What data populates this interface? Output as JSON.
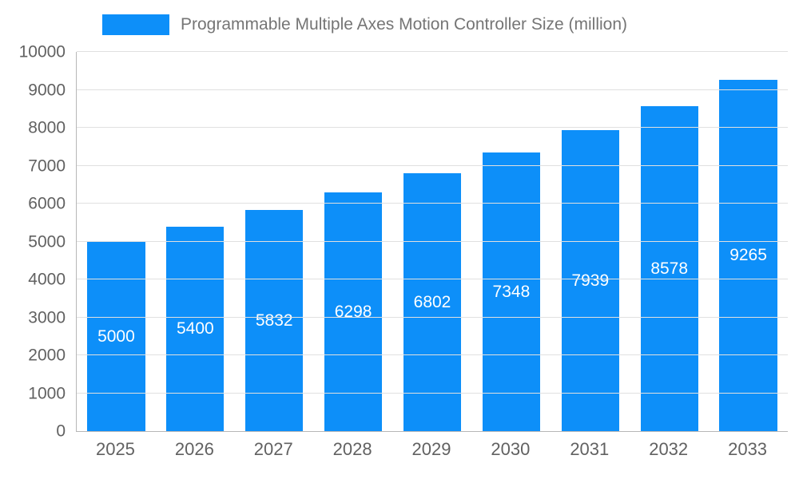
{
  "legend": {
    "label": "Programmable Multiple Axes Motion Controller Size (million)",
    "swatch_color": "#0d8ff9"
  },
  "chart_data": {
    "type": "bar",
    "title": "Programmable Multiple Axes Motion Controller Size (million)",
    "categories": [
      "2025",
      "2026",
      "2027",
      "2028",
      "2029",
      "2030",
      "2031",
      "2032",
      "2033"
    ],
    "values": [
      5000,
      5400,
      5832,
      6298,
      6802,
      7348,
      7939,
      8578,
      9265
    ],
    "bar_color": "#0d8ff9",
    "value_label_color": "#ffffff",
    "axis_label_color": "#616161",
    "gridline_color": "#e0e0e0",
    "xlabel": "",
    "ylabel": "",
    "ylim": [
      0,
      10000
    ],
    "yticks": [
      0,
      1000,
      2000,
      3000,
      4000,
      5000,
      6000,
      7000,
      8000,
      9000,
      10000
    ],
    "grid": true,
    "legend_position": "top"
  }
}
